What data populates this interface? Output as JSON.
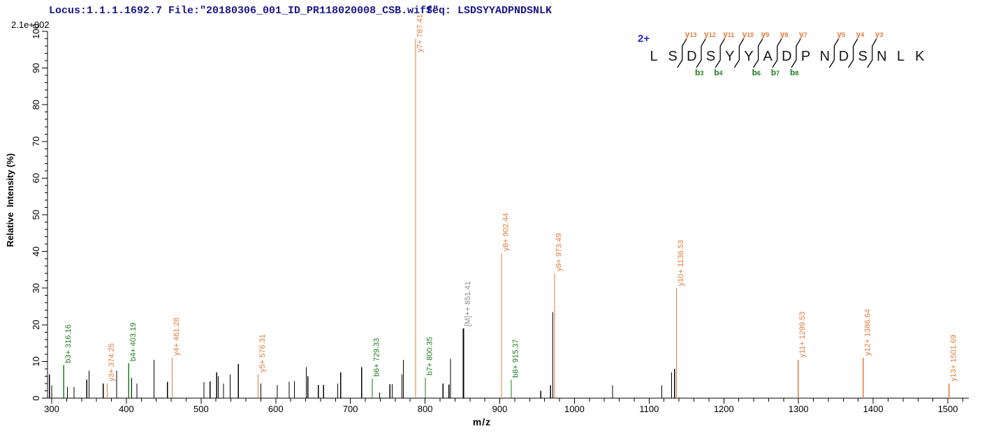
{
  "header": {
    "locus_file": "Locus:1.1.1.1692.7 File:\"20180306_001_ID_PR118020008_CSB.wiff\"",
    "seq": "Seq: LSDSYYADPNDSNLK"
  },
  "colors": {
    "y_ion": "#E07B3C",
    "b_ion": "#1E7D1E",
    "precursor_label": "#8F8F8F",
    "noise": "#000000",
    "axis": "#000000",
    "header_text": "#18188E",
    "charge_label": "#2424CE",
    "residue_letter": "#161616"
  },
  "sequence_diagram": {
    "charge_label": "2+",
    "residues": [
      "L",
      "S",
      "D",
      "S",
      "Y",
      "Y",
      "A",
      "D",
      "P",
      "N",
      "D",
      "S",
      "N",
      "L",
      "K"
    ],
    "y_ions": [
      {
        "label": "y",
        "num": "13",
        "after_residue": 1
      },
      {
        "label": "y",
        "num": "12",
        "after_residue": 2
      },
      {
        "label": "y",
        "num": "11",
        "after_residue": 3
      },
      {
        "label": "y",
        "num": "10",
        "after_residue": 4
      },
      {
        "label": "y",
        "num": "9",
        "after_residue": 5
      },
      {
        "label": "y",
        "num": "8",
        "after_residue": 6
      },
      {
        "label": "y",
        "num": "7",
        "after_residue": 7
      },
      {
        "label": "y",
        "num": "5",
        "after_residue": 9
      },
      {
        "label": "y",
        "num": "4",
        "after_residue": 10
      },
      {
        "label": "y",
        "num": "3",
        "after_residue": 11
      }
    ],
    "b_ions": [
      {
        "label": "b",
        "num": "3",
        "after_residue": 2
      },
      {
        "label": "b",
        "num": "4",
        "after_residue": 3
      },
      {
        "label": "b",
        "num": "6",
        "after_residue": 5
      },
      {
        "label": "b",
        "num": "7",
        "after_residue": 6
      },
      {
        "label": "b",
        "num": "8",
        "after_residue": 7
      }
    ]
  },
  "chart_data": {
    "type": "bar",
    "title": "",
    "xlabel": "m/z",
    "ylabel": "Relative  Intensity (%)",
    "max_intensity_label": "2.1e+002",
    "xlim": [
      300,
      1528
    ],
    "ylim": [
      0,
      100
    ],
    "x_minor_step": 20,
    "y_minor_step": 2,
    "x_tick_labels": [
      "300",
      "400",
      "500",
      "600",
      "700",
      "800",
      "900",
      "1000",
      "1100",
      "1200",
      "1300",
      "1400",
      "1500"
    ],
    "y_tick_labels": [
      "0",
      "10",
      "20",
      "30",
      "40",
      "50",
      "60",
      "70",
      "80",
      "90",
      "100"
    ],
    "legend": "none",
    "grid": false,
    "peaks": [
      {
        "mz": 297,
        "intensity": 6.5,
        "type": "noise"
      },
      {
        "mz": 300,
        "intensity": 3.5,
        "type": "noise"
      },
      {
        "mz": 316.16,
        "intensity": 9,
        "type": "y_b",
        "label": "b3+ 316.16",
        "ion": "b"
      },
      {
        "mz": 321,
        "intensity": 3,
        "type": "noise"
      },
      {
        "mz": 330,
        "intensity": 3,
        "type": "noise"
      },
      {
        "mz": 347,
        "intensity": 5,
        "type": "noise"
      },
      {
        "mz": 350,
        "intensity": 7.5,
        "type": "noise"
      },
      {
        "mz": 369,
        "intensity": 4,
        "type": "noise"
      },
      {
        "mz": 374.25,
        "intensity": 4,
        "type": "y_b",
        "label": "y3+ 374.25",
        "ion": "y"
      },
      {
        "mz": 387,
        "intensity": 7.5,
        "type": "noise"
      },
      {
        "mz": 403.19,
        "intensity": 9.5,
        "type": "y_b",
        "label": "b4+ 403.19",
        "ion": "b"
      },
      {
        "mz": 407,
        "intensity": 5.5,
        "type": "noise"
      },
      {
        "mz": 414,
        "intensity": 4,
        "type": "noise"
      },
      {
        "mz": 437,
        "intensity": 10.5,
        "type": "noise"
      },
      {
        "mz": 455,
        "intensity": 4.5,
        "type": "noise"
      },
      {
        "mz": 461.28,
        "intensity": 11,
        "type": "y_b",
        "label": "y4+ 461.28",
        "ion": "y"
      },
      {
        "mz": 504,
        "intensity": 4.4,
        "type": "noise"
      },
      {
        "mz": 512,
        "intensity": 4.6,
        "type": "noise"
      },
      {
        "mz": 521,
        "intensity": 7,
        "type": "noise"
      },
      {
        "mz": 523,
        "intensity": 6,
        "type": "noise"
      },
      {
        "mz": 530,
        "intensity": 4,
        "type": "noise"
      },
      {
        "mz": 539,
        "intensity": 6.5,
        "type": "noise"
      },
      {
        "mz": 550,
        "intensity": 9.3,
        "type": "noise"
      },
      {
        "mz": 576.31,
        "intensity": 6.5,
        "type": "y_b",
        "label": "y5+ 576.31",
        "ion": "y"
      },
      {
        "mz": 580,
        "intensity": 4,
        "type": "noise"
      },
      {
        "mz": 602,
        "intensity": 3.6,
        "type": "noise"
      },
      {
        "mz": 618,
        "intensity": 4.5,
        "type": "noise"
      },
      {
        "mz": 625,
        "intensity": 4.7,
        "type": "noise"
      },
      {
        "mz": 641,
        "intensity": 8.5,
        "type": "noise"
      },
      {
        "mz": 643,
        "intensity": 6,
        "type": "noise"
      },
      {
        "mz": 657,
        "intensity": 3.6,
        "type": "noise"
      },
      {
        "mz": 664,
        "intensity": 3.6,
        "type": "noise"
      },
      {
        "mz": 683,
        "intensity": 4,
        "type": "noise"
      },
      {
        "mz": 687,
        "intensity": 7,
        "type": "noise"
      },
      {
        "mz": 715,
        "intensity": 8.5,
        "type": "noise"
      },
      {
        "mz": 729.33,
        "intensity": 5.3,
        "type": "y_b",
        "label": "b6+ 729.33",
        "ion": "b"
      },
      {
        "mz": 739,
        "intensity": 1.5,
        "type": "noise"
      },
      {
        "mz": 753,
        "intensity": 3.8,
        "type": "noise"
      },
      {
        "mz": 756,
        "intensity": 3.8,
        "type": "noise"
      },
      {
        "mz": 769,
        "intensity": 6.5,
        "type": "noise"
      },
      {
        "mz": 771,
        "intensity": 10.5,
        "type": "noise"
      },
      {
        "mz": 787.41,
        "intensity": 98,
        "type": "y_b",
        "label": "y7+ 787.41",
        "ion": "y"
      },
      {
        "mz": 800.35,
        "intensity": 5.6,
        "type": "y_b",
        "label": "b7+ 800.35",
        "ion": "b"
      },
      {
        "mz": 824,
        "intensity": 4,
        "type": "noise"
      },
      {
        "mz": 832,
        "intensity": 3.7,
        "type": "noise"
      },
      {
        "mz": 834,
        "intensity": 10.7,
        "type": "noise"
      },
      {
        "mz": 851.41,
        "intensity": 19,
        "type": "precursor",
        "label": "[M]++ 851.41",
        "ion": "precursor"
      },
      {
        "mz": 902.44,
        "intensity": 39.5,
        "type": "y_b",
        "label": "y8+ 902.44",
        "ion": "y"
      },
      {
        "mz": 915.37,
        "intensity": 5,
        "type": "y_b",
        "label": "b8+ 915.37",
        "ion": "b"
      },
      {
        "mz": 955,
        "intensity": 2,
        "type": "noise"
      },
      {
        "mz": 968,
        "intensity": 3.5,
        "type": "noise"
      },
      {
        "mz": 971,
        "intensity": 23.5,
        "type": "noise"
      },
      {
        "mz": 973.49,
        "intensity": 34,
        "type": "y_b",
        "label": "y9+ 973.49",
        "ion": "y"
      },
      {
        "mz": 1051,
        "intensity": 3.5,
        "type": "noise"
      },
      {
        "mz": 1117,
        "intensity": 3.5,
        "type": "noise"
      },
      {
        "mz": 1130,
        "intensity": 7,
        "type": "noise"
      },
      {
        "mz": 1134,
        "intensity": 8,
        "type": "noise"
      },
      {
        "mz": 1136.53,
        "intensity": 30,
        "type": "y_b",
        "label": "y10+ 1136.53",
        "ion": "y"
      },
      {
        "mz": 1299.53,
        "intensity": 10.5,
        "type": "y_b",
        "label": "y11+ 1299.53",
        "ion": "y"
      },
      {
        "mz": 1386.64,
        "intensity": 11,
        "type": "y_b",
        "label": "y12+ 1386.64",
        "ion": "y"
      },
      {
        "mz": 1501.69,
        "intensity": 4,
        "type": "y_b",
        "label": "y13+ 1501.69",
        "ion": "y"
      }
    ]
  }
}
